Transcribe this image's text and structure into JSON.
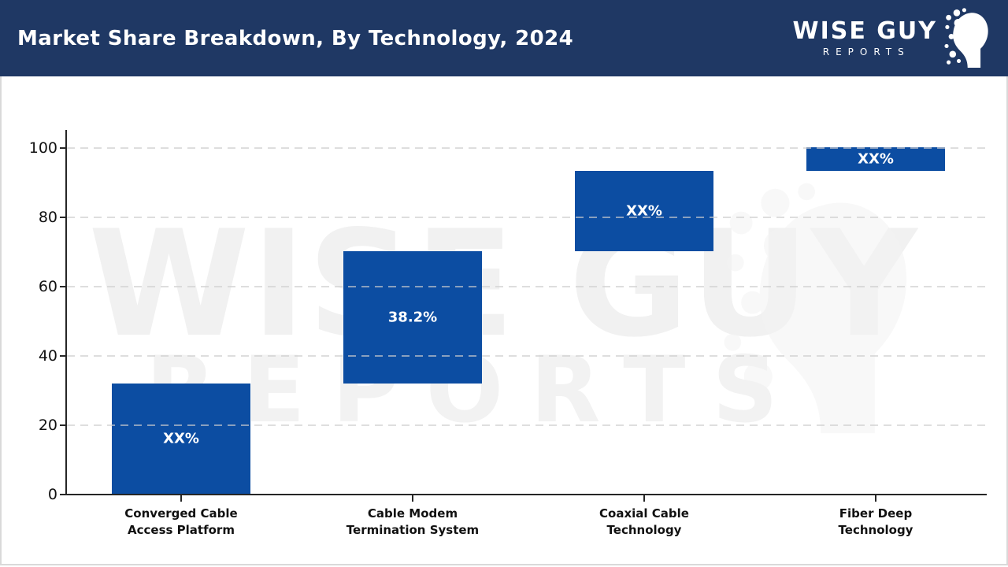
{
  "header": {
    "title": "Market Share Breakdown, By Technology, 2024",
    "brand": {
      "name": "WISE GUY",
      "tagline": "REPORTS"
    }
  },
  "watermark": {
    "line1": "WISE GUY",
    "line2": "REPORTS"
  },
  "colors": {
    "header_bg": "#1f3864",
    "bar": "#0c4da2",
    "bar_label": "#ffffff",
    "axis": "#262626",
    "grid": "#dcdcdc",
    "tick_text": "#111111",
    "card_border": "#d9d9d9",
    "watermark": "#f1f1f1"
  },
  "chart_data": {
    "type": "bar",
    "subtype": "floating-waterfall",
    "title": "Market Share Breakdown, By Technology, 2024",
    "categories": [
      [
        "Converged Cable",
        "Access Platform"
      ],
      [
        "Cable Modem",
        "Termination System"
      ],
      [
        "Coaxial Cable",
        "Technology"
      ],
      [
        "Fiber Deep",
        "Technology"
      ]
    ],
    "bars": [
      {
        "start": 0,
        "end": 31.8,
        "value": 31.8,
        "label": "XX%"
      },
      {
        "start": 31.8,
        "end": 70,
        "value": 38.2,
        "label": "38.2%"
      },
      {
        "start": 70,
        "end": 93,
        "value": 23,
        "label": "XX%"
      },
      {
        "start": 93,
        "end": 100,
        "value": 7,
        "label": "XX%"
      }
    ],
    "xlabel": "",
    "ylabel": "",
    "ylim": [
      0,
      100
    ],
    "yticks": [
      0,
      20,
      40,
      60,
      80,
      100
    ],
    "grid": "horizontal-dashed",
    "legend": "none",
    "bar_color": "#0c4da2",
    "label_color": "#ffffff"
  }
}
